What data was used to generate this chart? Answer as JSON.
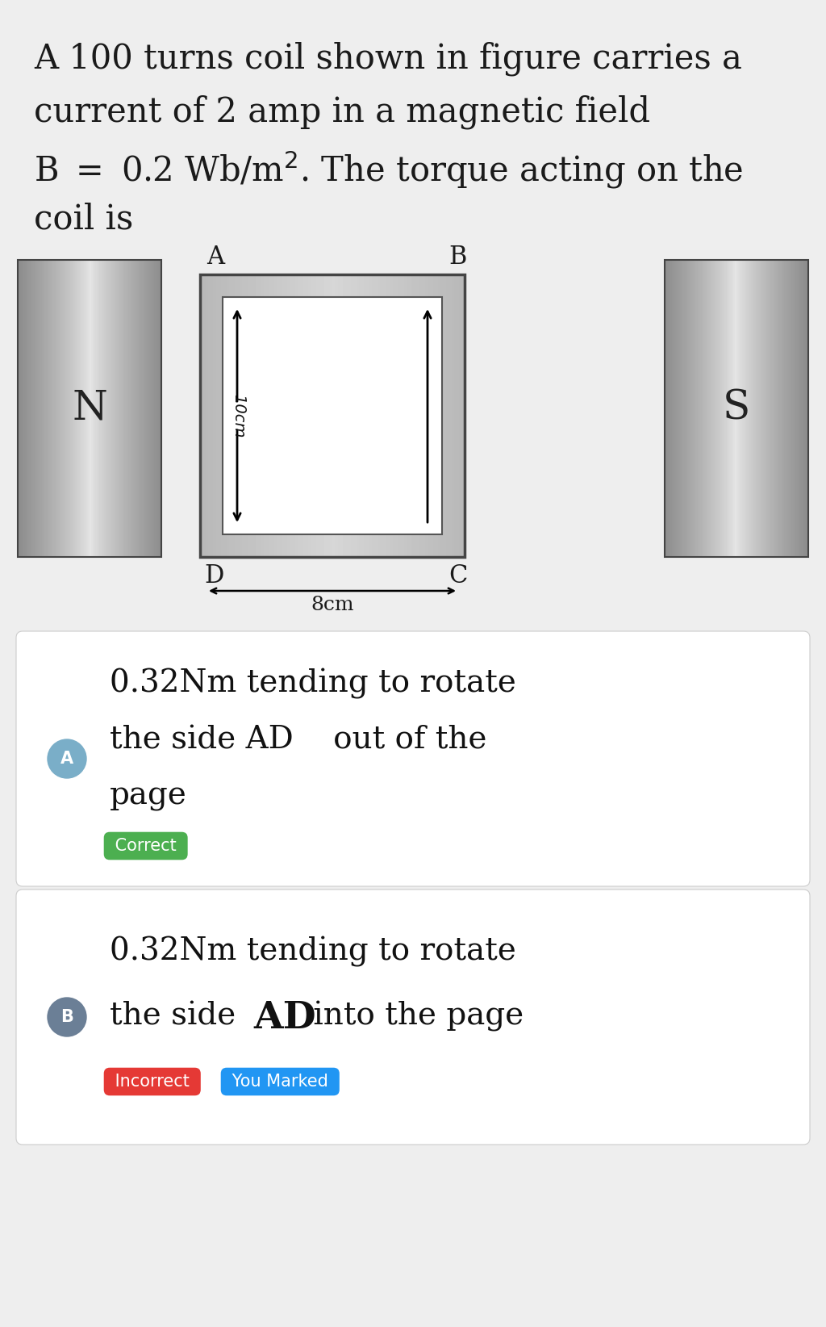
{
  "bg_color": "#ffffff",
  "page_bg": "#f0f0f0",
  "question_text_lines": [
    "A 100 turns coil shown in figure carries a",
    "current of 2 amp in a magnetic field",
    "coil is"
  ],
  "option_a": {
    "label": "A",
    "label_bg": "#7aaec8",
    "text_line1": "0.32Nm tending to rotate",
    "text_line2": "the side AD    out of the",
    "text_line3": "page",
    "badge_text": "Correct",
    "badge_color": "#4caf50",
    "badge_text_color": "#ffffff"
  },
  "option_b": {
    "label": "B",
    "label_bg": "#6b7f96",
    "text_line1": "0.32Nm tending to rotate",
    "text_line2_parts": [
      "the side ",
      "AD",
      " into the page"
    ],
    "badge1_text": "Incorrect",
    "badge1_color": "#e53935",
    "badge1_text_color": "#ffffff",
    "badge2_text": "You Marked",
    "badge2_color": "#2196f3",
    "badge2_text_color": "#ffffff"
  }
}
